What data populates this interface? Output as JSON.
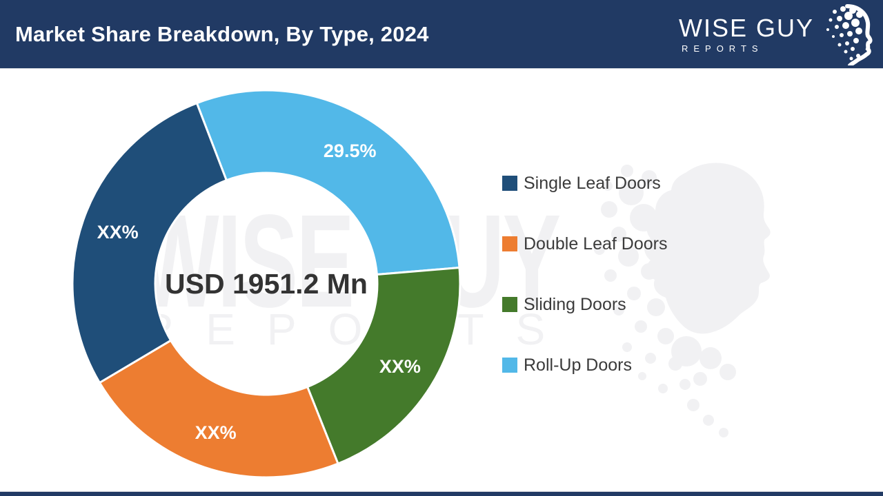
{
  "header": {
    "title": "Market Share Breakdown, By Type, 2024"
  },
  "brand": {
    "name": "WISE GUY",
    "subtitle": "REPORTS"
  },
  "watermark": {
    "name": "WISE GUY",
    "subtitle": "REPORTS"
  },
  "colors": {
    "header_bar": "#213a64",
    "bottom_bar": "#213a64",
    "title_text": "#ffffff",
    "legend_text": "#3b3b3b",
    "center_text": "#333333",
    "watermark": "#f1f1f3"
  },
  "chart_data": {
    "type": "pie",
    "donut": true,
    "title": "Market Share Breakdown, By Type, 2024",
    "center_label": "USD 1951.2 Mn",
    "categories": [
      "Single Leaf Doors",
      "Double Leaf Doors",
      "Sliding Doors",
      "Roll-Up Doors"
    ],
    "values": [
      27.7,
      22.5,
      20.3,
      29.5
    ],
    "slice_labels": [
      "XX%",
      "XX%",
      "XX%",
      "29.5%"
    ],
    "colors": [
      "#1f4e79",
      "#ed7d31",
      "#447a2b",
      "#52b8e8"
    ],
    "legend_position": "right",
    "start_angle_clockwise_from_top": -21
  }
}
